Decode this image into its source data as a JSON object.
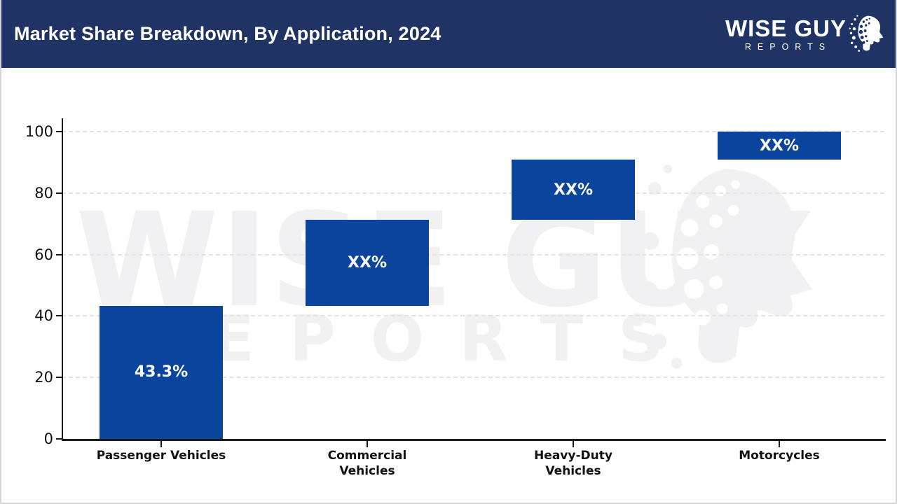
{
  "header": {
    "title": "Market Share Breakdown, By Application, 2024",
    "logo": {
      "line1": "WISE GUY",
      "line2": "REPORTS"
    }
  },
  "watermark": {
    "line1": "WISE GUY",
    "line2": "REPORTS"
  },
  "chart_data": {
    "type": "bar",
    "subtype": "waterfall",
    "title": "Market Share Breakdown, By Application, 2024",
    "categories": [
      "Passenger Vehicles",
      "Commercial Vehicles",
      "Heavy-Duty Vehicles",
      "Motorcycles"
    ],
    "category_lines": [
      [
        "Passenger Vehicles"
      ],
      [
        "Commercial",
        "Vehicles"
      ],
      [
        "Heavy-Duty",
        "Vehicles"
      ],
      [
        "Motorcycles"
      ]
    ],
    "segments": [
      {
        "category": "Passenger Vehicles",
        "start": 0,
        "end": 43.3,
        "label": "43.3%"
      },
      {
        "category": "Commercial Vehicles",
        "start": 43.3,
        "end": 71.3,
        "label": "XX%"
      },
      {
        "category": "Heavy-Duty Vehicles",
        "start": 71.3,
        "end": 90.8,
        "label": "XX%"
      },
      {
        "category": "Motorcycles",
        "start": 90.8,
        "end": 100,
        "label": "XX%"
      }
    ],
    "ylim": [
      0,
      100
    ],
    "yticks": [
      0,
      20,
      40,
      60,
      80,
      100
    ],
    "xlabel": "",
    "ylabel": "",
    "grid": "horizontal-dashed",
    "legend": "none",
    "colors": {
      "bar": "#0a449c",
      "bar_label": "#ffffff",
      "axis": "#1a1a1a",
      "gridline": "#e3e3e3",
      "header_bg": "#1f3365",
      "watermark": "#f1f1f3"
    }
  }
}
